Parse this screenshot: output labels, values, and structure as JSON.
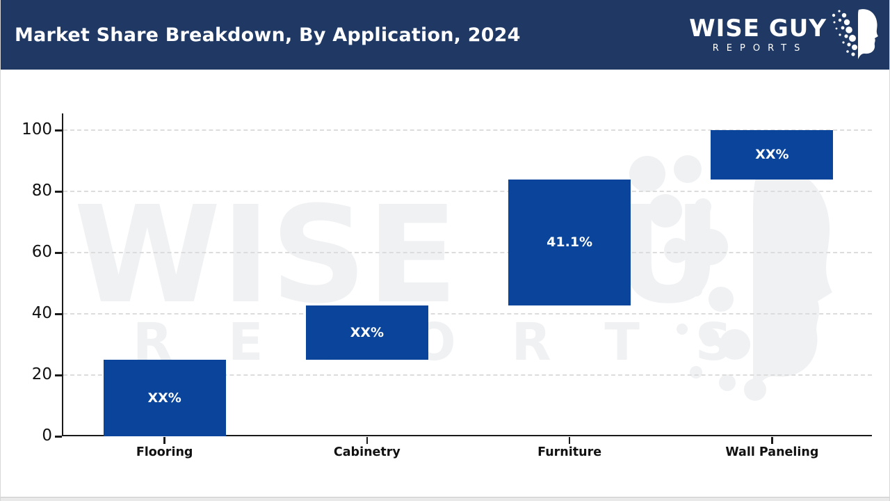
{
  "header": {
    "title": "Market Share Breakdown, By Application, 2024",
    "bg_color": "#1f3864",
    "logo": {
      "line1": "WISE GUY",
      "line2": "REPORTS"
    }
  },
  "watermark": {
    "line1": "WISE GU",
    "line2": "REPORTS"
  },
  "chart_data": {
    "type": "bar",
    "subtype": "floating-waterfall",
    "title": "Market Share Breakdown, By Application, 2024",
    "categories": [
      "Flooring",
      "Cabinetry",
      "Furniture",
      "Wall Paneling"
    ],
    "segments": [
      {
        "category": "Flooring",
        "start": 0,
        "end": 25.0,
        "label": "XX%"
      },
      {
        "category": "Cabinetry",
        "start": 25.0,
        "end": 42.8,
        "label": "XX%"
      },
      {
        "category": "Furniture",
        "start": 42.8,
        "end": 83.9,
        "label": "41.1%"
      },
      {
        "category": "Wall Paneling",
        "start": 83.9,
        "end": 100.0,
        "label": "XX%"
      }
    ],
    "yticks": [
      0,
      20,
      40,
      60,
      80,
      100
    ],
    "ylim": [
      0,
      105.5
    ],
    "xlabel": "",
    "ylabel": "",
    "legend": "none",
    "grid": "horizontal-dashed",
    "bar_color": "#0a459b",
    "grid_color": "#dcdcdc",
    "axis_color": "#1a1a1a",
    "watermark_color": "#f0f1f3"
  }
}
